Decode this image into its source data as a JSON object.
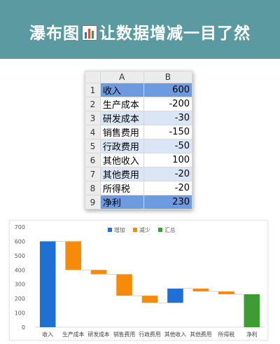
{
  "banner": {
    "title_pre": "瀑布图",
    "title_post": "让数据增减一目了然",
    "color": "#5b9aa0"
  },
  "sheet": {
    "col_headers": [
      "A",
      "B"
    ],
    "rows": [
      {
        "n": "1",
        "label": "收入",
        "value": "600",
        "style": "hl"
      },
      {
        "n": "2",
        "label": "生产成本",
        "value": "-200",
        "style": ""
      },
      {
        "n": "3",
        "label": "研发成本",
        "value": "-30",
        "style": "alt"
      },
      {
        "n": "4",
        "label": "销售费用",
        "value": "-150",
        "style": ""
      },
      {
        "n": "5",
        "label": "行政费用",
        "value": "-50",
        "style": "alt"
      },
      {
        "n": "6",
        "label": "其他收入",
        "value": "100",
        "style": ""
      },
      {
        "n": "7",
        "label": "其他费用",
        "value": "-20",
        "style": "alt"
      },
      {
        "n": "8",
        "label": "所得税",
        "value": "-20",
        "style": ""
      },
      {
        "n": "9",
        "label": "净利",
        "value": "230",
        "style": "hl"
      }
    ]
  },
  "chart_data": {
    "type": "waterfall",
    "title": "",
    "categories": [
      "收入",
      "生产成本",
      "研发成本",
      "销售费用",
      "行政费用",
      "其他收入",
      "其他费用",
      "所得税",
      "净利"
    ],
    "values": [
      600,
      -200,
      -30,
      -150,
      -50,
      100,
      -20,
      -20,
      230
    ],
    "kinds": [
      "total",
      "delta",
      "delta",
      "delta",
      "delta",
      "delta",
      "delta",
      "delta",
      "total"
    ],
    "ylim": [
      0,
      700
    ],
    "yticks": [
      0,
      100,
      200,
      300,
      400,
      500,
      600,
      700
    ],
    "legend": [
      {
        "name": "增加",
        "color": "#1f6fd6"
      },
      {
        "name": "减少",
        "color": "#f68a0a"
      },
      {
        "name": "汇总",
        "color": "#3f9c35"
      }
    ],
    "legend_position": "top-center",
    "grid": false,
    "xlabel": "",
    "ylabel": ""
  }
}
